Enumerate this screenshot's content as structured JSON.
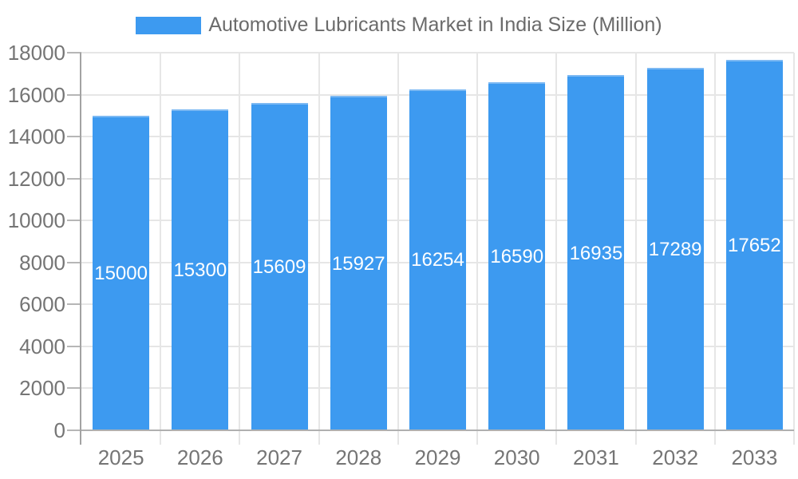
{
  "legend": {
    "label": "Automotive Lubricants Market in India Size (Million)"
  },
  "chart_data": {
    "type": "bar",
    "title": "Automotive Lubricants Market in India Size (Million)",
    "categories": [
      "2025",
      "2026",
      "2027",
      "2028",
      "2029",
      "2030",
      "2031",
      "2032",
      "2033"
    ],
    "values": [
      15000,
      15300,
      15609,
      15927,
      16254,
      16590,
      16935,
      17289,
      17652
    ],
    "bar_value_labels": [
      "15000",
      "15300",
      "15609",
      "15927",
      "16254",
      "16590",
      "16935",
      "17289",
      "17652"
    ],
    "xlabel": "",
    "ylabel": "",
    "ylim": [
      0,
      18000
    ],
    "y_ticks": [
      0,
      2000,
      4000,
      6000,
      8000,
      10000,
      12000,
      14000,
      16000,
      18000
    ],
    "grid": true,
    "legend_position": "top",
    "value_label_position": "center-of-bar",
    "colors": {
      "bar": "#3d9af0",
      "bar_border": "#7cb9f3",
      "bar_value_text": "#ffffff",
      "axis_label_text": "#757575",
      "legend_text": "#6b6b6b",
      "gridline": "#e6e6e6",
      "axis_line": "#a3a3a3",
      "baseline": "#b0b0b0"
    }
  }
}
